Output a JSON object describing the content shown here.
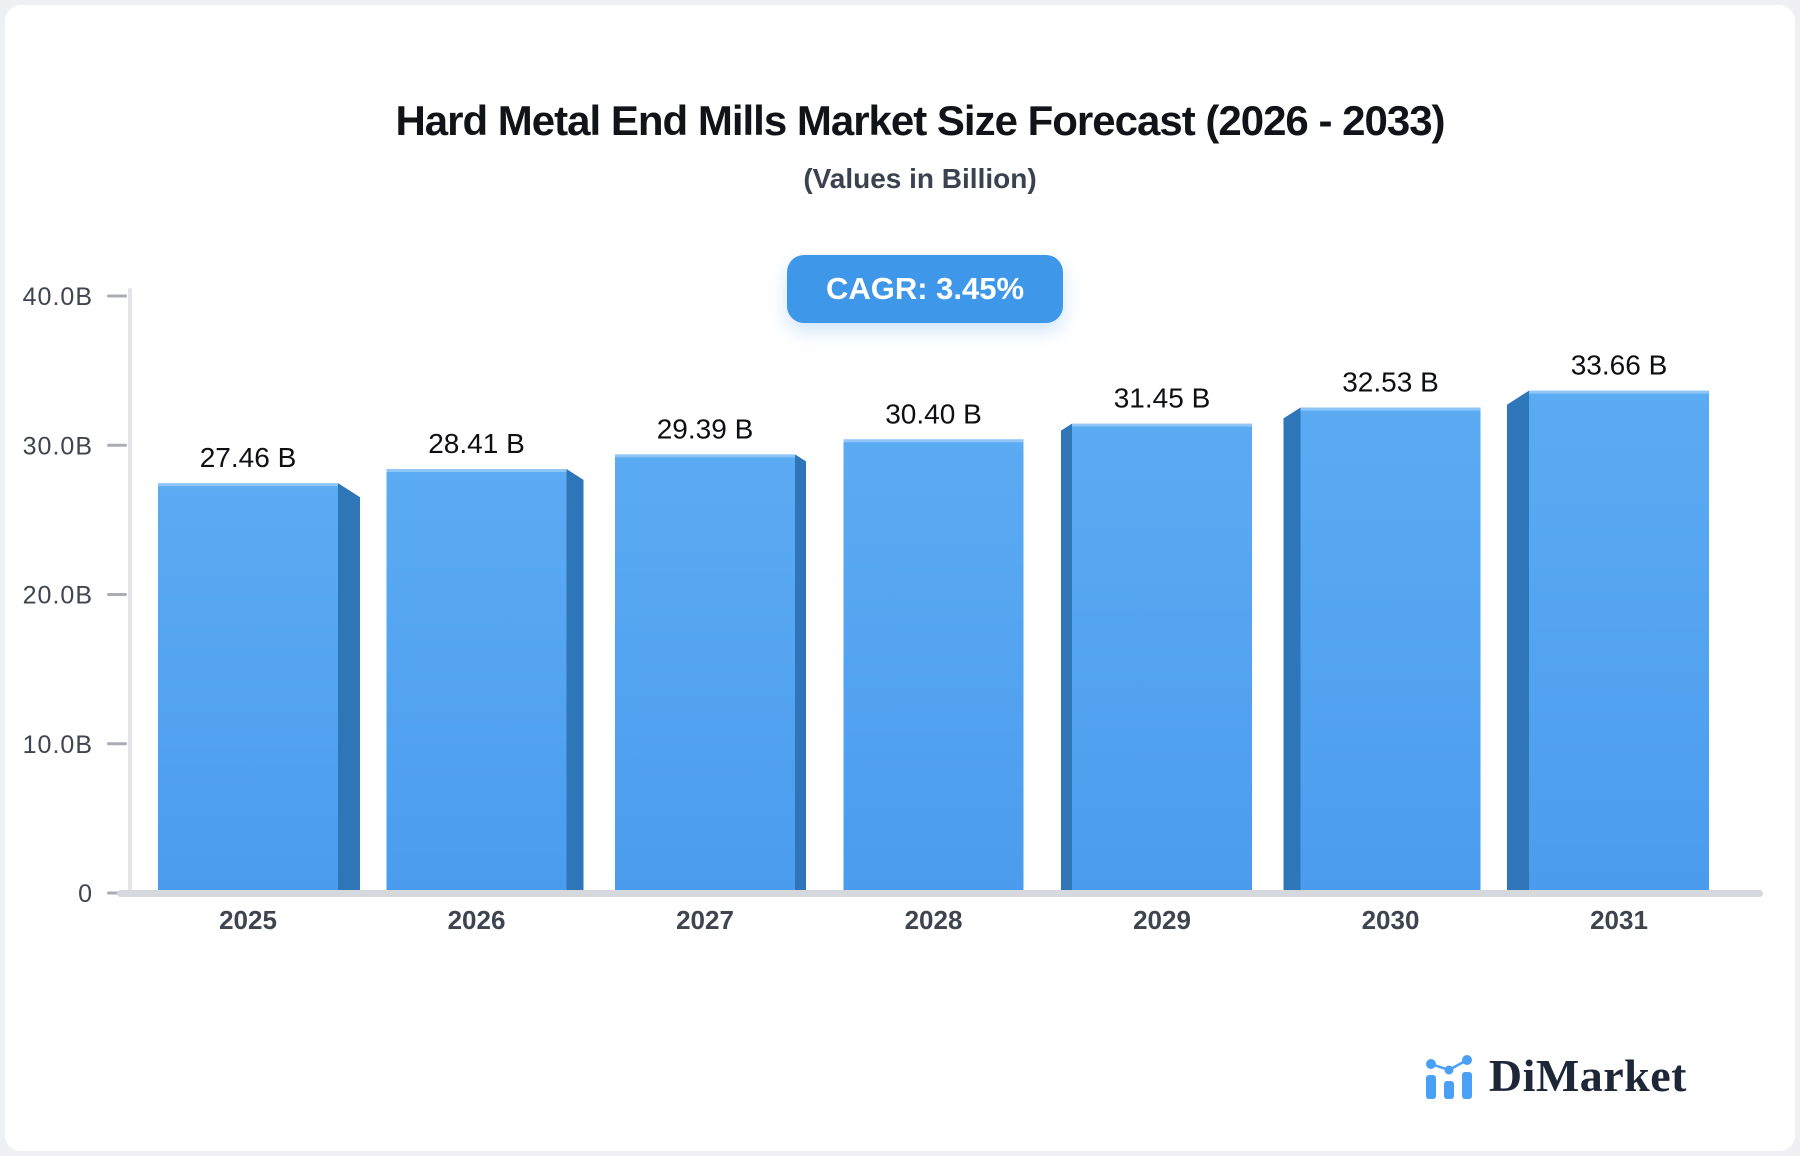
{
  "title": "Hard Metal End Mills Market Size Forecast (2026 - 2033)",
  "subtitle": "(Values in Billion)",
  "badge": {
    "label": "CAGR: 3.45%",
    "bg": "#3f97e9",
    "text_color": "#ffffff"
  },
  "chart_data": {
    "type": "bar",
    "title": "Hard Metal End Mills Market Size Forecast (2026 - 2033)",
    "subtitle": "(Values in Billion)",
    "cagr": "3.45%",
    "categories": [
      "2025",
      "2026",
      "2027",
      "2028",
      "2029",
      "2030",
      "2031"
    ],
    "values": [
      27.46,
      28.41,
      29.39,
      30.4,
      31.45,
      32.53,
      33.66
    ],
    "value_labels": [
      "27.46 B",
      "28.41 B",
      "29.39 B",
      "30.40 B",
      "31.45 B",
      "32.53 B",
      "33.66 B"
    ],
    "xlabel": "",
    "ylabel": "",
    "ylim": [
      0,
      40
    ],
    "yticks": [
      {
        "value": 0,
        "label": "0"
      },
      {
        "value": 10,
        "label": "10.0B"
      },
      {
        "value": 20,
        "label": "20.0B"
      },
      {
        "value": 30,
        "label": "30.0B"
      },
      {
        "value": 40,
        "label": "40.0B"
      }
    ],
    "grid": false,
    "legend": false,
    "style": "pseudo-3d bars, side faces angled toward center",
    "colors": {
      "bar_face_top": "#5babf3",
      "bar_face_bottom": "#4b9cee",
      "bar_side": "#2e76b8",
      "axis_line": "#e3e5ea",
      "baseline": "#d5d8dd",
      "tick_dash": "#a9aeb6",
      "tick_label": "#3e4551",
      "value_label": "#0e0f12"
    }
  },
  "branding": {
    "logo_text": "DiMarket",
    "logo_icon": "bar-chart-with-trend-dots-icon",
    "navy": "#1d2737",
    "blue": "#4aa0f4"
  }
}
